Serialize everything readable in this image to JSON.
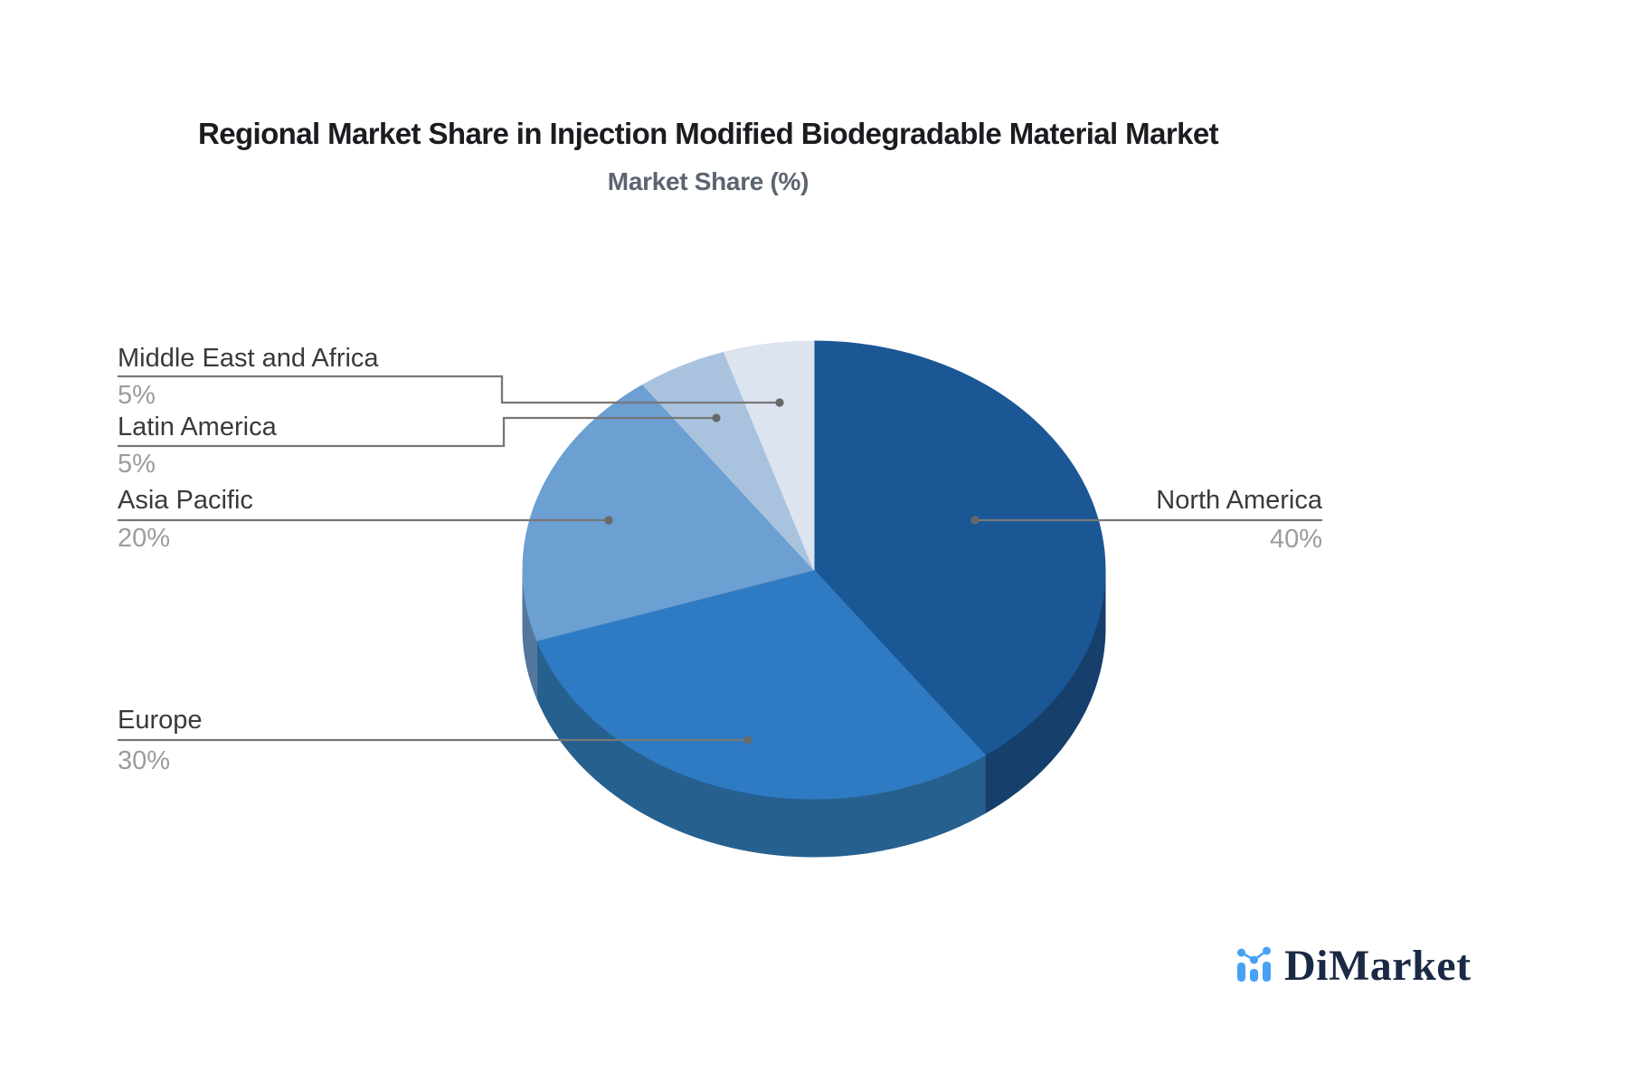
{
  "header": {
    "title": "Regional Market Share in Injection Modified Biodegradable Material Market",
    "subtitle": "Market Share (%)"
  },
  "chart_data": {
    "type": "pie",
    "title": "Regional Market Share in Injection Modified Biodegradable Material Market",
    "subtitle": "Market Share (%)",
    "unit": "%",
    "start_angle_deg": 0,
    "direction": "clockwise",
    "style": "3d-pie with gray callout leader lines and dots",
    "slices": [
      {
        "label": "North America",
        "value": 40,
        "color": "#1b5795",
        "side_color": "#163f6b"
      },
      {
        "label": "Europe",
        "value": 30,
        "color": "#2f7bc3",
        "side_color": "#26608f"
      },
      {
        "label": "Asia Pacific",
        "value": 20,
        "color": "#6c9fd2",
        "side_color": "#53769d"
      },
      {
        "label": "Latin America",
        "value": 5,
        "color": "#a9c3df",
        "side_color": "#7e9cbd"
      },
      {
        "label": "Middle East and Africa",
        "value": 5,
        "color": "#dce4ef",
        "side_color": "#aab8cd"
      }
    ]
  },
  "callouts": [
    {
      "label": "Middle East and Africa",
      "pct": "5%"
    },
    {
      "label": "Latin America",
      "pct": "5%"
    },
    {
      "label": "Asia Pacific",
      "pct": "20%"
    },
    {
      "label": "North America",
      "pct": "40%"
    },
    {
      "label": "Europe",
      "pct": "30%"
    }
  ],
  "colors": {
    "title_text": "#1a1c20",
    "subtitle_text": "#5b6470",
    "label_text": "#3a3a3a",
    "pct_text": "#9c9c9c",
    "leader_line": "#777777",
    "leader_dot": "#686868",
    "background": "#ffffff",
    "logo_icon": "#47a1f5",
    "logo_text": "#1b2a44"
  },
  "logo": {
    "brand": "DiMarket",
    "icon": "bar-chart-logo-icon"
  }
}
